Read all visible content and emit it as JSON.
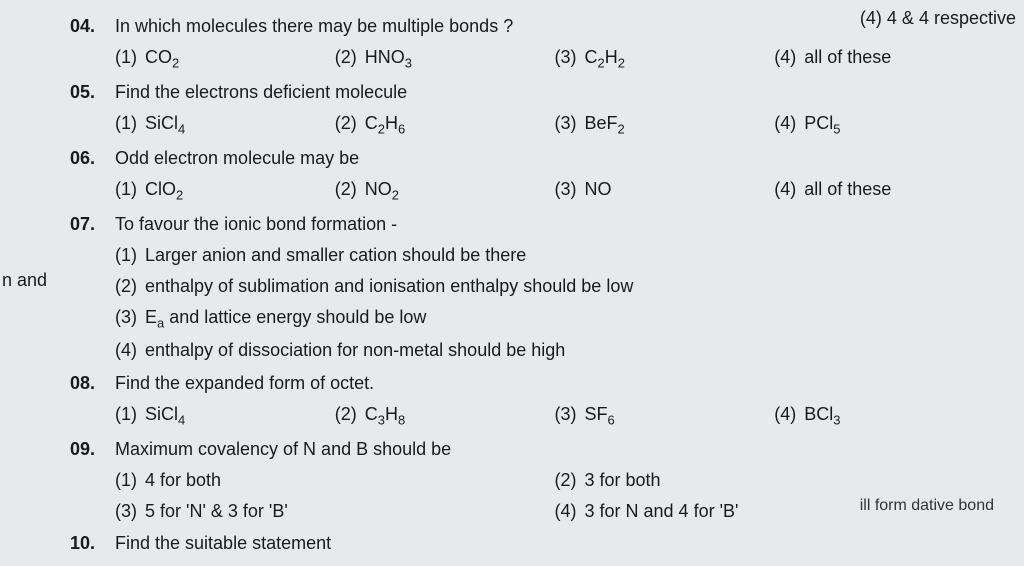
{
  "topRight": "(4)  4 & 4 respective",
  "leftLabel": "n and",
  "bottomRight": "ill form dative bond",
  "questions": [
    {
      "num": "04.",
      "text": "In which molecules there may be multiple bonds ?",
      "layout": "4col",
      "options": [
        {
          "n": "(1)",
          "t": "CO",
          "sub": "2"
        },
        {
          "n": "(2)",
          "t": "HNO",
          "sub": "3"
        },
        {
          "n": "(3)",
          "t": "C",
          "sub": "2",
          "t2": "H",
          "sub2": "2"
        },
        {
          "n": "(4)",
          "t": "all of these"
        }
      ]
    },
    {
      "num": "05.",
      "text": "Find the electrons deficient molecule",
      "layout": "4col",
      "options": [
        {
          "n": "(1)",
          "t": "SiCl",
          "sub": "4"
        },
        {
          "n": "(2)",
          "t": "C",
          "sub": "2",
          "t2": "H",
          "sub2": "6"
        },
        {
          "n": "(3)",
          "t": "BeF",
          "sub": "2"
        },
        {
          "n": "(4)",
          "t": "PCl",
          "sub": "5"
        }
      ]
    },
    {
      "num": "06.",
      "text": "Odd electron molecule may be",
      "layout": "4col",
      "options": [
        {
          "n": "(1)",
          "t": "ClO",
          "sub": "2"
        },
        {
          "n": "(2)",
          "t": "NO",
          "sub": "2"
        },
        {
          "n": "(3)",
          "t": "NO"
        },
        {
          "n": "(4)",
          "t": "all of these"
        }
      ]
    },
    {
      "num": "07.",
      "text": "To favour the ionic bond formation -",
      "layout": "full",
      "options": [
        {
          "n": "(1)",
          "t": "Larger anion and smaller cation should be there"
        },
        {
          "n": "(2)",
          "t": "enthalpy of sublimation and ionisation enthalpy should be low"
        },
        {
          "n": "(3)",
          "pre": "E",
          "sub": "a",
          "t": " and lattice energy should be low"
        },
        {
          "n": "(4)",
          "t": "enthalpy of dissociation for non-metal should be high"
        }
      ]
    },
    {
      "num": "08.",
      "text": "Find the expanded form of octet.",
      "layout": "4col",
      "options": [
        {
          "n": "(1)",
          "t": "SiCl",
          "sub": "4"
        },
        {
          "n": "(2)",
          "t": "C",
          "sub": "3",
          "t2": "H",
          "sub2": "8"
        },
        {
          "n": "(3)",
          "t": "SF",
          "sub": "6"
        },
        {
          "n": "(4)",
          "t": "BCl",
          "sub": "3"
        }
      ]
    },
    {
      "num": "09.",
      "text": "Maximum covalency of N and B should be",
      "layout": "2col",
      "options": [
        {
          "n": "(1)",
          "t": "4 for both"
        },
        {
          "n": "(2)",
          "t": "3 for both"
        },
        {
          "n": "(3)",
          "t": "5 for 'N' & 3 for 'B'"
        },
        {
          "n": "(4)",
          "t": "3 for N and 4 for 'B'"
        }
      ]
    },
    {
      "num": "10.",
      "text": "Find the suitable statement",
      "layout": "none",
      "options": []
    }
  ]
}
